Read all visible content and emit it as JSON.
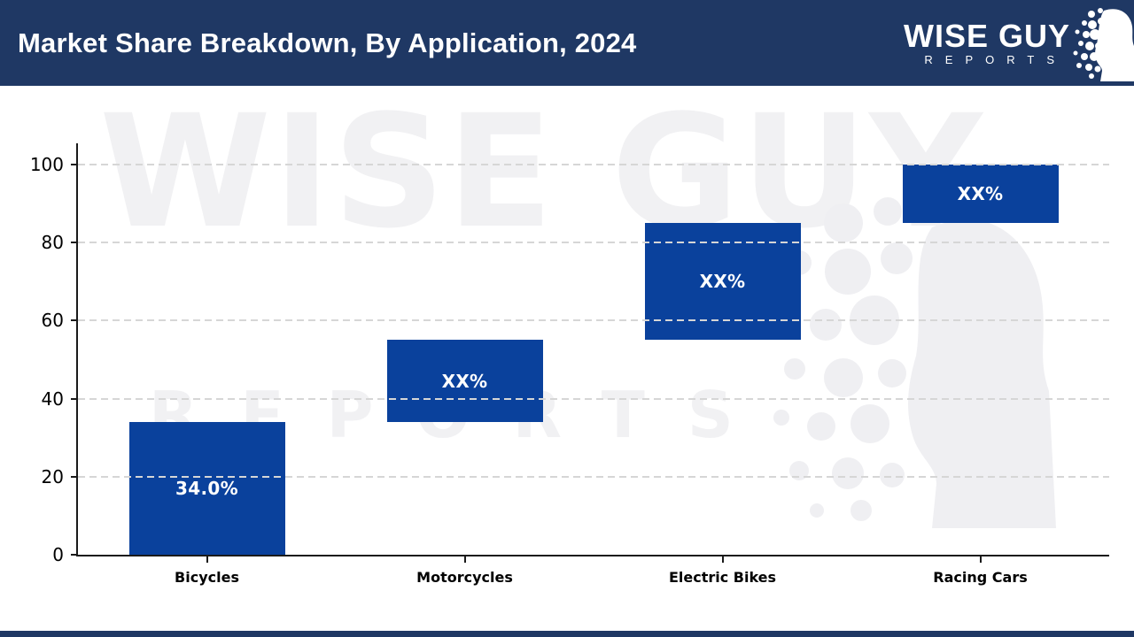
{
  "header": {
    "title": "Market Share Breakdown, By Application, 2024",
    "logo": {
      "line1": "WISE GUY",
      "line2": "REPORTS"
    }
  },
  "watermark": {
    "line1": "WISE GUY",
    "line2": "REPORTS"
  },
  "colors": {
    "header_bg": "#1f3864",
    "bar": "#0a419c",
    "grid": "#d6d6d6",
    "bar_label": "#ffffff",
    "watermark": "#f1f1f3",
    "axis": "#1a1a1a"
  },
  "chart_data": {
    "type": "bar",
    "subtype": "waterfall-floating-bars",
    "title": "Market Share Breakdown, By Application, 2024",
    "categories": [
      "Bicycles",
      "Motorcycles",
      "Electric Bikes",
      "Racing Cars"
    ],
    "bars": [
      {
        "category": "Bicycles",
        "start": 0,
        "end": 34,
        "label": "34.0%"
      },
      {
        "category": "Motorcycles",
        "start": 34,
        "end": 55,
        "label": "XX%"
      },
      {
        "category": "Electric Bikes",
        "start": 55,
        "end": 85,
        "label": "XX%"
      },
      {
        "category": "Racing Cars",
        "start": 85,
        "end": 100,
        "label": "XX%"
      }
    ],
    "xlabel": "",
    "ylabel": "",
    "ylim": [
      0,
      105
    ],
    "yticks": [
      0,
      20,
      40,
      60,
      80,
      100
    ],
    "grid": "horizontal-dashed",
    "legend": "none"
  }
}
